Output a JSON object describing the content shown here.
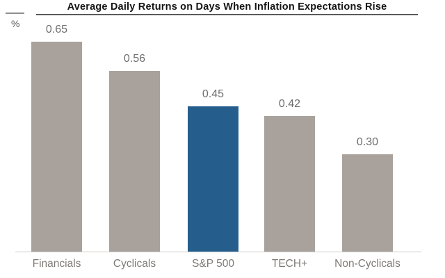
{
  "chart_data": {
    "type": "bar",
    "title": "Average Daily Returns on Days When Inflation Expectations Rise",
    "ylabel": "%",
    "xlabel": "",
    "categories": [
      "Financials",
      "Cyclicals",
      "S&P 500",
      "TECH+",
      "Non-Cyclicals"
    ],
    "values": [
      0.65,
      0.56,
      0.45,
      0.42,
      0.3
    ],
    "data_labels": [
      "0.65",
      "0.56",
      "0.45",
      "0.42",
      "0.30"
    ],
    "highlight_index": 2,
    "colors": {
      "bar_default": "#a9a29c",
      "bar_highlight": "#255e8c",
      "value_label": "#6e6e6e",
      "category_label": "#7e7a74",
      "axis_line": "#cdcbc8"
    },
    "ylim": [
      0,
      0.7
    ],
    "grid": false,
    "legend": false
  }
}
